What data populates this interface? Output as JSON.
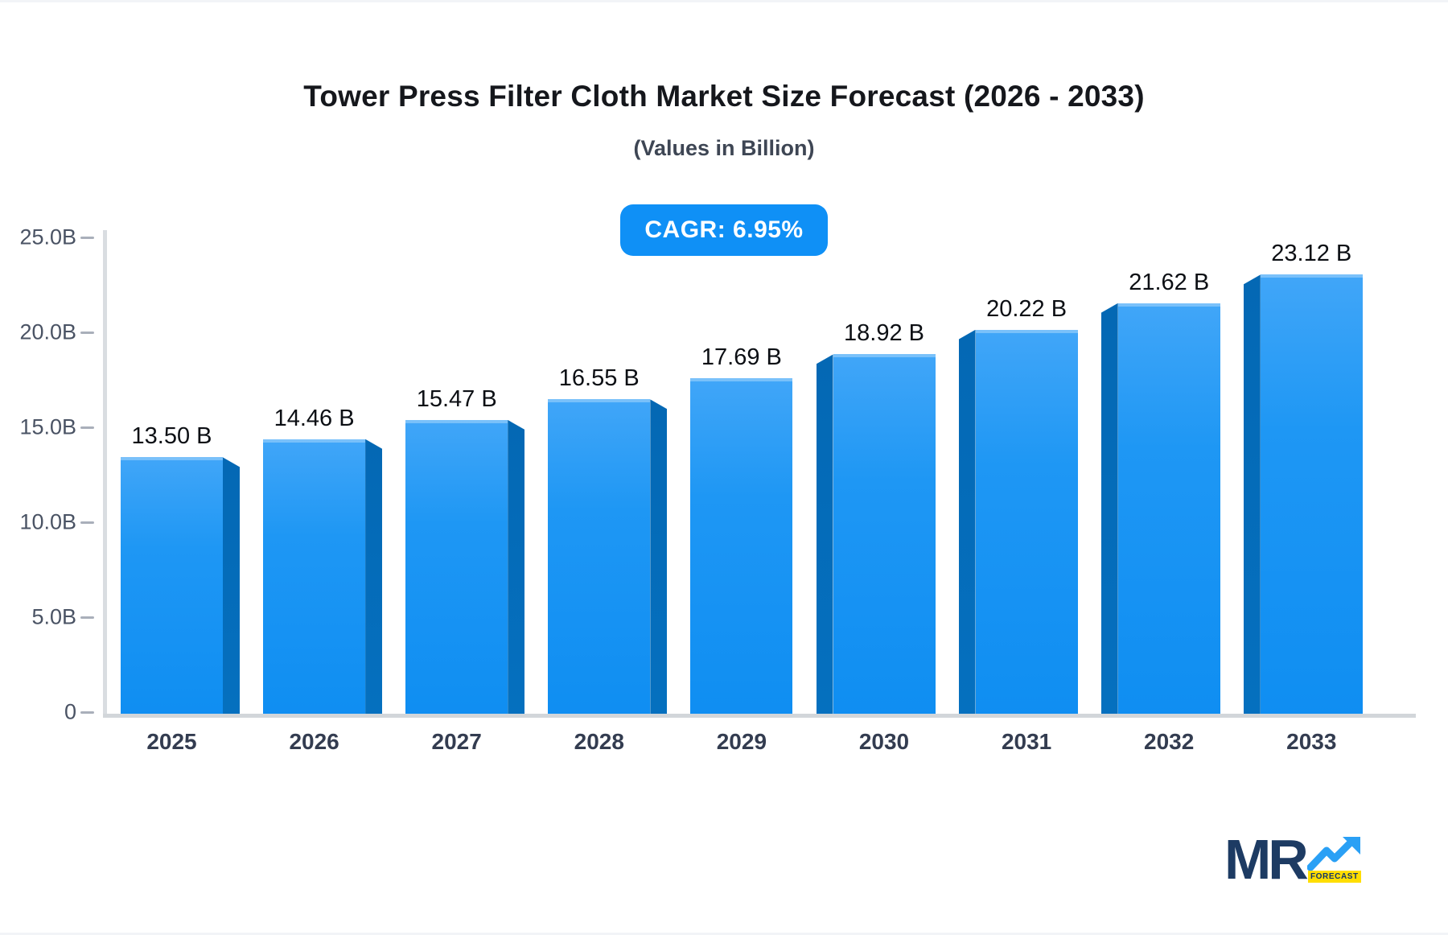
{
  "header": {
    "title": "Tower Press Filter Cloth Market Size Forecast (2026 - 2033)",
    "subtitle": "(Values in Billion)",
    "cagr_badge": "CAGR: 6.95%"
  },
  "chart_data": {
    "type": "bar",
    "title": "Tower Press Filter Cloth Market Size Forecast (2026 - 2033)",
    "subtitle": "(Values in Billion)",
    "cagr_label": "CAGR: 6.95%",
    "cagr_percent": 6.95,
    "unit": "Billion",
    "categories": [
      "2025",
      "2026",
      "2027",
      "2028",
      "2029",
      "2030",
      "2031",
      "2032",
      "2033"
    ],
    "values": [
      13.5,
      14.46,
      15.47,
      16.55,
      17.69,
      18.92,
      20.22,
      21.62,
      23.12
    ],
    "value_labels": [
      "13.50 B",
      "14.46 B",
      "15.47 B",
      "16.55 B",
      "17.69 B",
      "18.92 B",
      "20.22 B",
      "21.62 B",
      "23.12 B"
    ],
    "yticks": [
      {
        "label": "25.0B",
        "value": 25
      },
      {
        "label": "20.0B",
        "value": 20
      },
      {
        "label": "15.0B",
        "value": 15
      },
      {
        "label": "10.0B",
        "value": 10
      },
      {
        "label": "5.0B",
        "value": 5
      },
      {
        "label": "0",
        "value": 0
      }
    ],
    "ylim": [
      0,
      25
    ],
    "xlabel": "",
    "ylabel": "",
    "grid": false,
    "legend": "none",
    "style": {
      "bar_face_top": "#41a6f8",
      "bar_face_bottom": "#0f8ef2",
      "bar_side": "#0570bf",
      "badge_blue": "#0f90f6",
      "axis_gray": "#d9dde1",
      "tick_text": "#4a5364",
      "xtick_text": "#333c50",
      "value_text": "#0c0f14"
    }
  },
  "logo": {
    "mr_text": "MR",
    "forecast_text": "FORECAST",
    "navy": "#1d3b63",
    "arrow_blue": "#2aa0f5",
    "yellow": "#ffde00"
  }
}
